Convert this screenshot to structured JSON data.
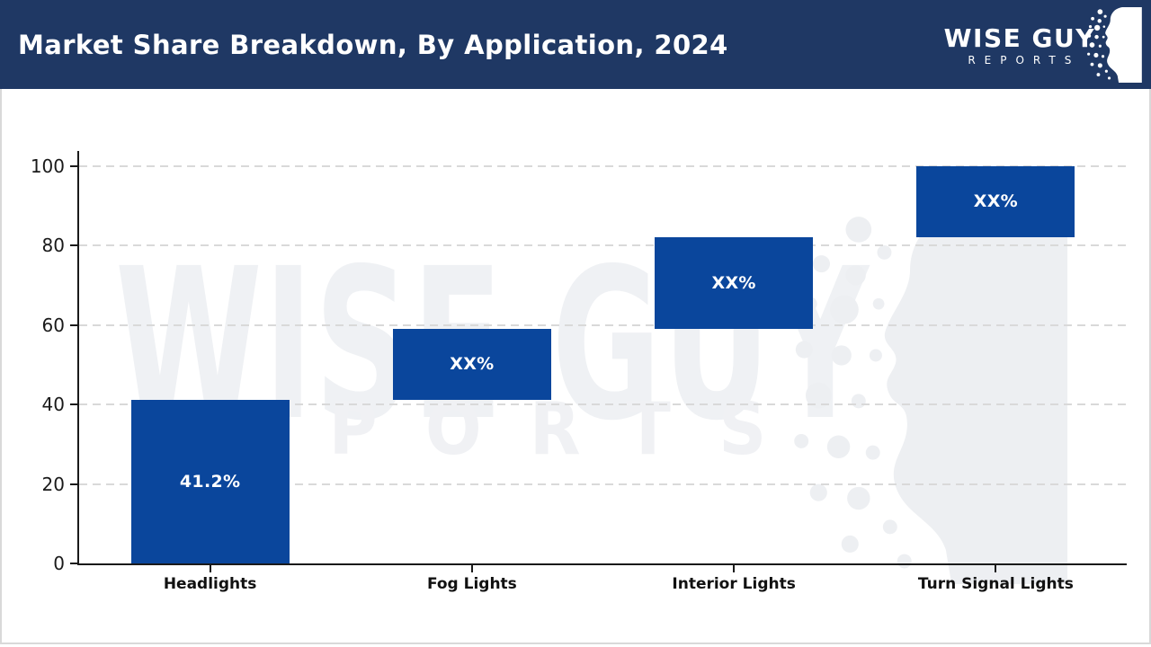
{
  "header": {
    "title": "Market Share Breakdown, By Application, 2024",
    "logo_line1": "WISE GUY",
    "logo_line2": "REPORTS",
    "bg_color": "#1f3864"
  },
  "watermark": {
    "line1": "WISE GUY",
    "line2": "REPORTS"
  },
  "chart_data": {
    "type": "bar",
    "subtype": "waterfall",
    "title": "Market Share Breakdown, By Application, 2024",
    "categories": [
      "Headlights",
      "Fog Lights",
      "Interior Lights",
      "Turn Signal Lights"
    ],
    "segments": [
      {
        "category": "Headlights",
        "start": 0,
        "end": 41.2,
        "label": "41.2%"
      },
      {
        "category": "Fog Lights",
        "start": 41.2,
        "end": 59,
        "label": "XX%"
      },
      {
        "category": "Interior Lights",
        "start": 59,
        "end": 82,
        "label": "XX%"
      },
      {
        "category": "Turn Signal Lights",
        "start": 82,
        "end": 100,
        "label": "XX%"
      }
    ],
    "xlabel": "",
    "ylabel": "",
    "ylim": [
      0,
      100
    ],
    "yticks": [
      0,
      20,
      40,
      60,
      80,
      100
    ],
    "grid": "horizontal-dashed",
    "legend": "none",
    "bar_color": "#0a469c",
    "bar_label_color": "#ffffff",
    "axis_color": "#1a1a1a",
    "gridline_color": "#d9d9d9"
  }
}
